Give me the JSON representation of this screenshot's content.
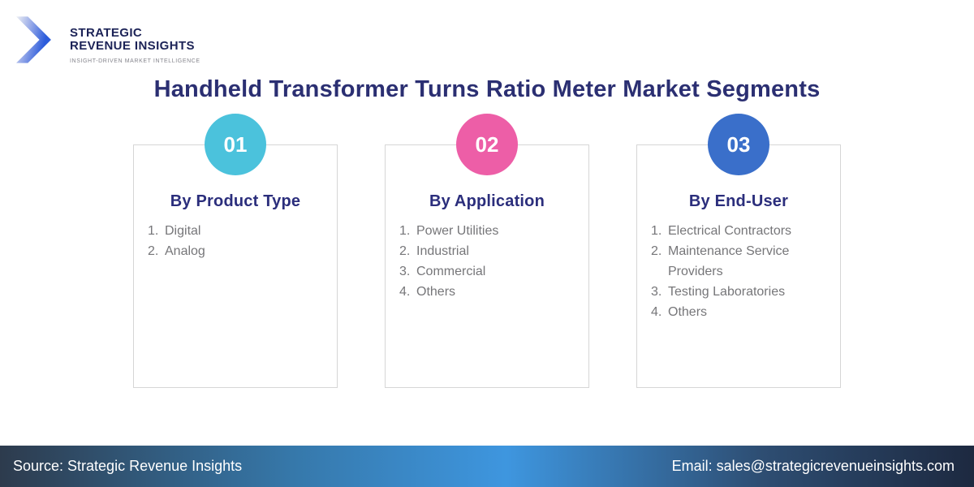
{
  "logo": {
    "line1": "STRATEGIC",
    "line2": "REVENUE INSIGHTS",
    "tagline": "INSIGHT-DRIVEN MARKET INTELLIGENCE"
  },
  "title": "Handheld Transformer Turns Ratio Meter Market Segments",
  "cards": [
    {
      "number": "01",
      "circle_color": "#4bc2dc",
      "heading": "By Product Type",
      "items": [
        "Digital",
        "Analog"
      ]
    },
    {
      "number": "02",
      "circle_color": "#ed5ea7",
      "heading": "By Application",
      "items": [
        "Power Utilities",
        "Industrial",
        "Commercial",
        "Others"
      ]
    },
    {
      "number": "03",
      "circle_color": "#3a6fca",
      "heading": "By End-User",
      "items": [
        "Electrical Contractors",
        "Maintenance Service Providers",
        "Testing Laboratories",
        "Others"
      ]
    }
  ],
  "footer": {
    "source": "Source: Strategic Revenue Insights",
    "email": "Email: sales@strategicrevenueinsights.com"
  },
  "colors": {
    "title_navy": "#2b2f72",
    "heading_navy": "#2b2e7c",
    "list_gray": "#767679",
    "card_border": "#d6d6d6",
    "footer_gradient_left": "#2d3b4d",
    "footer_gradient_mid": "#3e96df",
    "footer_gradient_right": "#1d2940",
    "logo_navy": "#1c2357",
    "logo_chevron_blue": "#2c5cdb",
    "logo_chevron_light": "#edeff3"
  }
}
